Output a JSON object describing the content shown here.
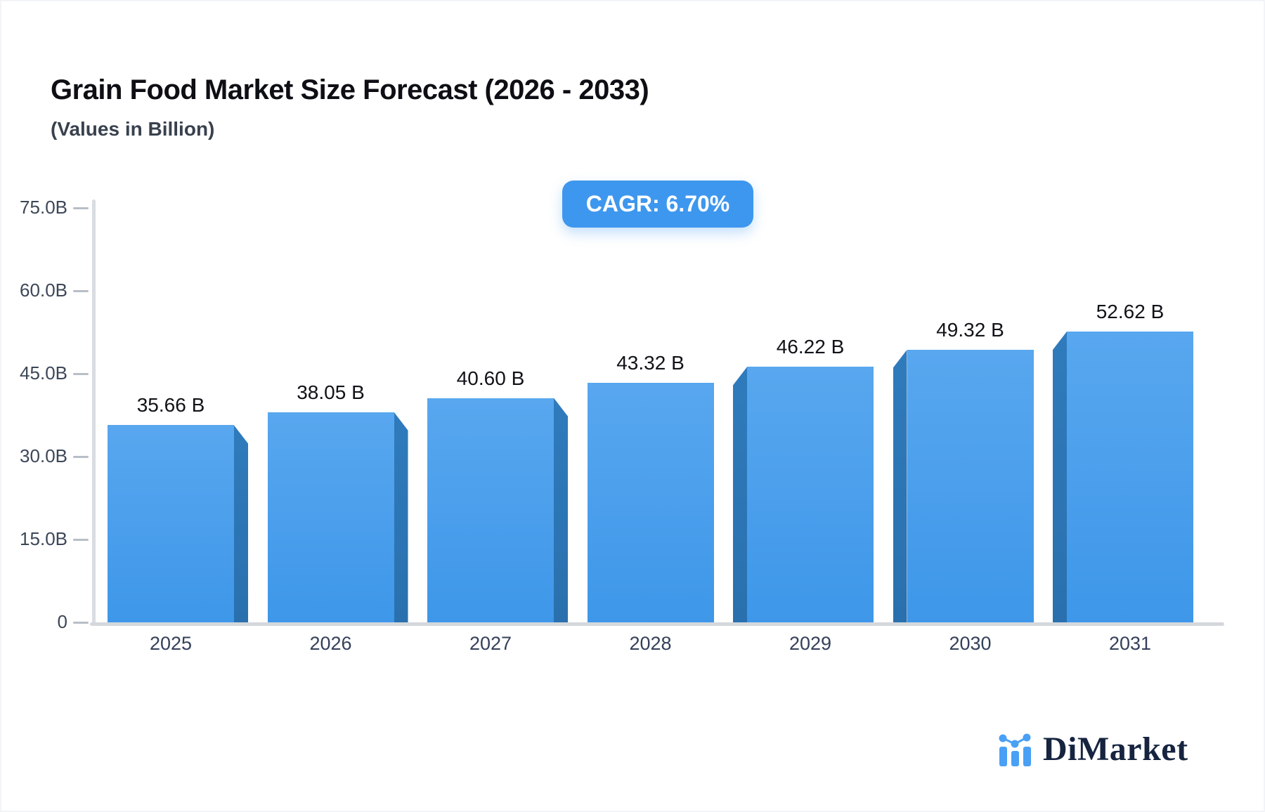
{
  "header": {
    "title": "Grain Food Market Size Forecast (2026 - 2033)",
    "subtitle": "(Values in Billion)",
    "cagr_badge": "CAGR: 6.70%"
  },
  "chart_data": {
    "type": "bar",
    "title": "Grain Food Market Size Forecast (2026 - 2033)",
    "subtitle": "(Values in Billion)",
    "categories": [
      "2025",
      "2026",
      "2027",
      "2028",
      "2029",
      "2030",
      "2031"
    ],
    "values": [
      35.66,
      38.05,
      40.6,
      43.32,
      46.22,
      49.32,
      52.62
    ],
    "data_labels": [
      "35.66 B",
      "38.05 B",
      "40.60 B",
      "43.32 B",
      "46.22 B",
      "49.32 B",
      "52.62 B"
    ],
    "xlabel": "",
    "ylabel": "",
    "ylim": [
      0,
      75
    ],
    "y_ticks": [
      {
        "value": 0,
        "label": "0"
      },
      {
        "value": 15,
        "label": "15.0B"
      },
      {
        "value": 30,
        "label": "30.0B"
      },
      {
        "value": 45,
        "label": "45.0B"
      },
      {
        "value": 60,
        "label": "60.0B"
      },
      {
        "value": 75,
        "label": "75.0B"
      }
    ],
    "grid": false,
    "legend": null,
    "annotation": "CAGR: 6.70%",
    "style": "3d-extruded-bars, shadow side faces outward from center bar"
  },
  "logo": {
    "brand": "DiMarket",
    "icon": "mini-bar-chart-with-trendline-icon"
  },
  "colors": {
    "badge_bg": "#3e97ee",
    "bar_face_top": "#58a7ef",
    "bar_face_bottom": "#3e97e9",
    "bar_side": "#2f7bbc",
    "bar_side_dark": "#2a70ae",
    "logo_blue": "#4aa0f4",
    "logo_navy": "#162440",
    "title_color": "#0d0f14",
    "axis_line": "#d4d8dc"
  }
}
